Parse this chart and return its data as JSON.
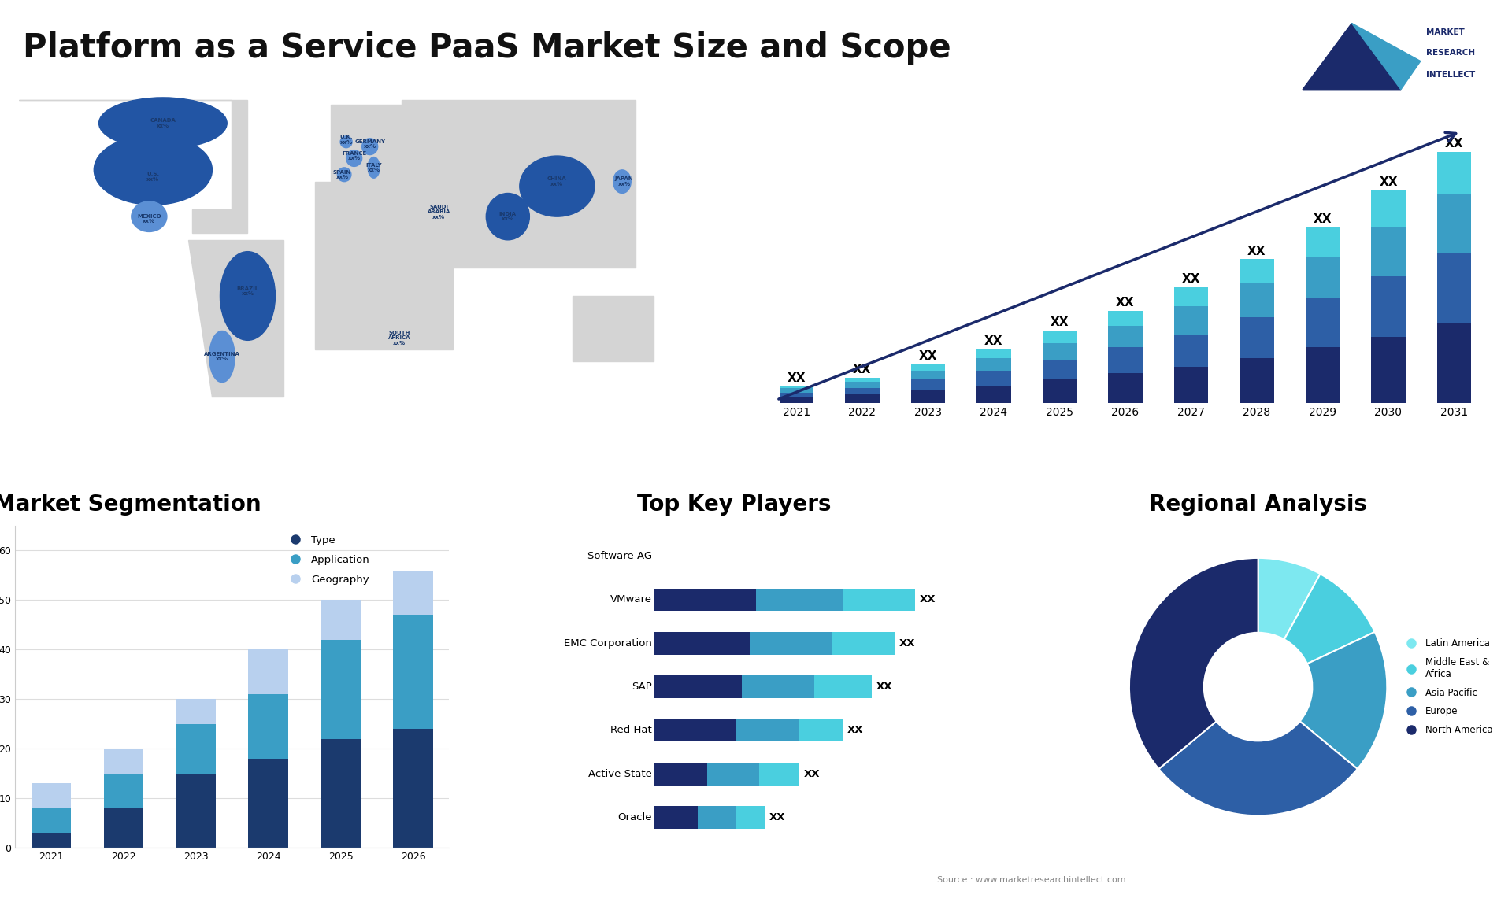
{
  "title": "Platform as a Service PaaS Market Size and Scope",
  "background_color": "#ffffff",
  "title_color": "#111111",
  "title_fontsize": 30,
  "bar_chart_years": [
    2021,
    2022,
    2023,
    2024,
    2025,
    2026,
    2027,
    2028,
    2029,
    2030,
    2031
  ],
  "bar_chart_layer1": [
    3,
    4,
    6,
    8,
    11,
    14,
    17,
    21,
    26,
    31,
    37
  ],
  "bar_chart_layer2": [
    2,
    3,
    5,
    7,
    9,
    12,
    15,
    19,
    23,
    28,
    33
  ],
  "bar_chart_layer3": [
    2,
    3,
    4,
    6,
    8,
    10,
    13,
    16,
    19,
    23,
    27
  ],
  "bar_chart_layer4": [
    1,
    2,
    3,
    4,
    6,
    7,
    9,
    11,
    14,
    17,
    20
  ],
  "bar_color1": "#1b2a6b",
  "bar_color2": "#2d5fa6",
  "bar_color3": "#3a9ec5",
  "bar_color4": "#4acfdf",
  "bar_label_xx": "XX",
  "seg_years": [
    2021,
    2022,
    2023,
    2024,
    2025,
    2026
  ],
  "seg_type": [
    3,
    8,
    15,
    18,
    22,
    24
  ],
  "seg_app": [
    5,
    7,
    10,
    13,
    20,
    23
  ],
  "seg_geo": [
    5,
    5,
    5,
    9,
    8,
    9
  ],
  "seg_color_type": "#1b3a6e",
  "seg_color_app": "#3a9ec5",
  "seg_color_geo": "#b8d0ee",
  "seg_title": "Market Segmentation",
  "seg_title_fontsize": 20,
  "players": [
    "Software AG",
    "VMware",
    "EMC Corporation",
    "SAP",
    "Red Hat",
    "Active State",
    "Oracle"
  ],
  "players_seg1": [
    0,
    35,
    33,
    30,
    28,
    18,
    15
  ],
  "players_seg2": [
    0,
    30,
    28,
    25,
    22,
    18,
    13
  ],
  "players_seg3": [
    0,
    25,
    22,
    20,
    15,
    14,
    10
  ],
  "players_color1": "#1b2a6b",
  "players_color2": "#3a9ec5",
  "players_color3": "#4acfdf",
  "players_title": "Top Key Players",
  "players_title_fontsize": 20,
  "pie_sizes": [
    8,
    10,
    18,
    28,
    36
  ],
  "pie_colors": [
    "#7de8f0",
    "#4acfdf",
    "#3a9ec5",
    "#2d5fa6",
    "#1b2a6b"
  ],
  "pie_labels": [
    "Latin America",
    "Middle East &\nAfrica",
    "Asia Pacific",
    "Europe",
    "North America"
  ],
  "pie_title": "Regional Analysis",
  "pie_title_fontsize": 20,
  "source_text": "Source : www.marketresearchintellect.com",
  "map_label_color": "#1a3a6e"
}
